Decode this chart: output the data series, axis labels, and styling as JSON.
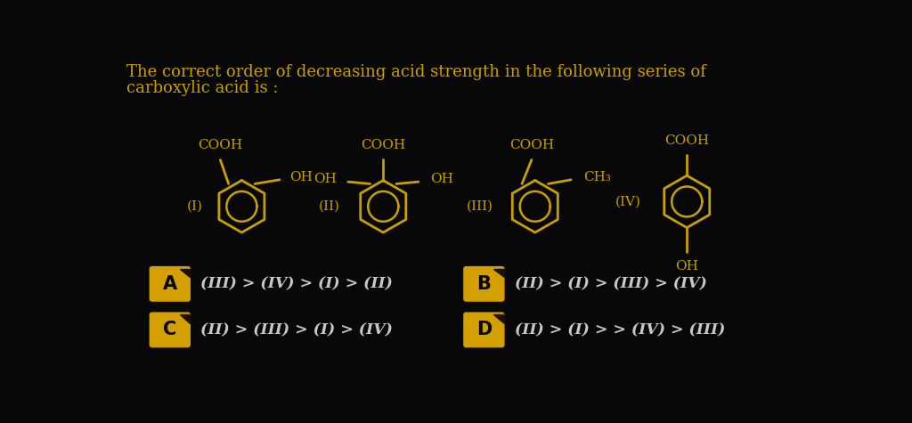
{
  "background_color": "#080808",
  "title_line1": "The correct order of decreasing acid strength in the following series of",
  "title_line2": "carboxylic acid is :",
  "title_color": "#c8a000",
  "title_fontsize": 13.0,
  "molecule_color": "#c8a000",
  "option_bg_color": "#d4a000",
  "answer_text_color": "#c8c8c8",
  "options": [
    {
      "label": "A",
      "text": "(III) > (IV) > (I) > (II)"
    },
    {
      "label": "B",
      "text": "(II) > (I) > (III) > (IV)"
    },
    {
      "label": "C",
      "text": "(II) > (III) > (I) > (IV)"
    },
    {
      "label": "D",
      "text": "(II) > (I) > > (IV) > (III)"
    }
  ]
}
